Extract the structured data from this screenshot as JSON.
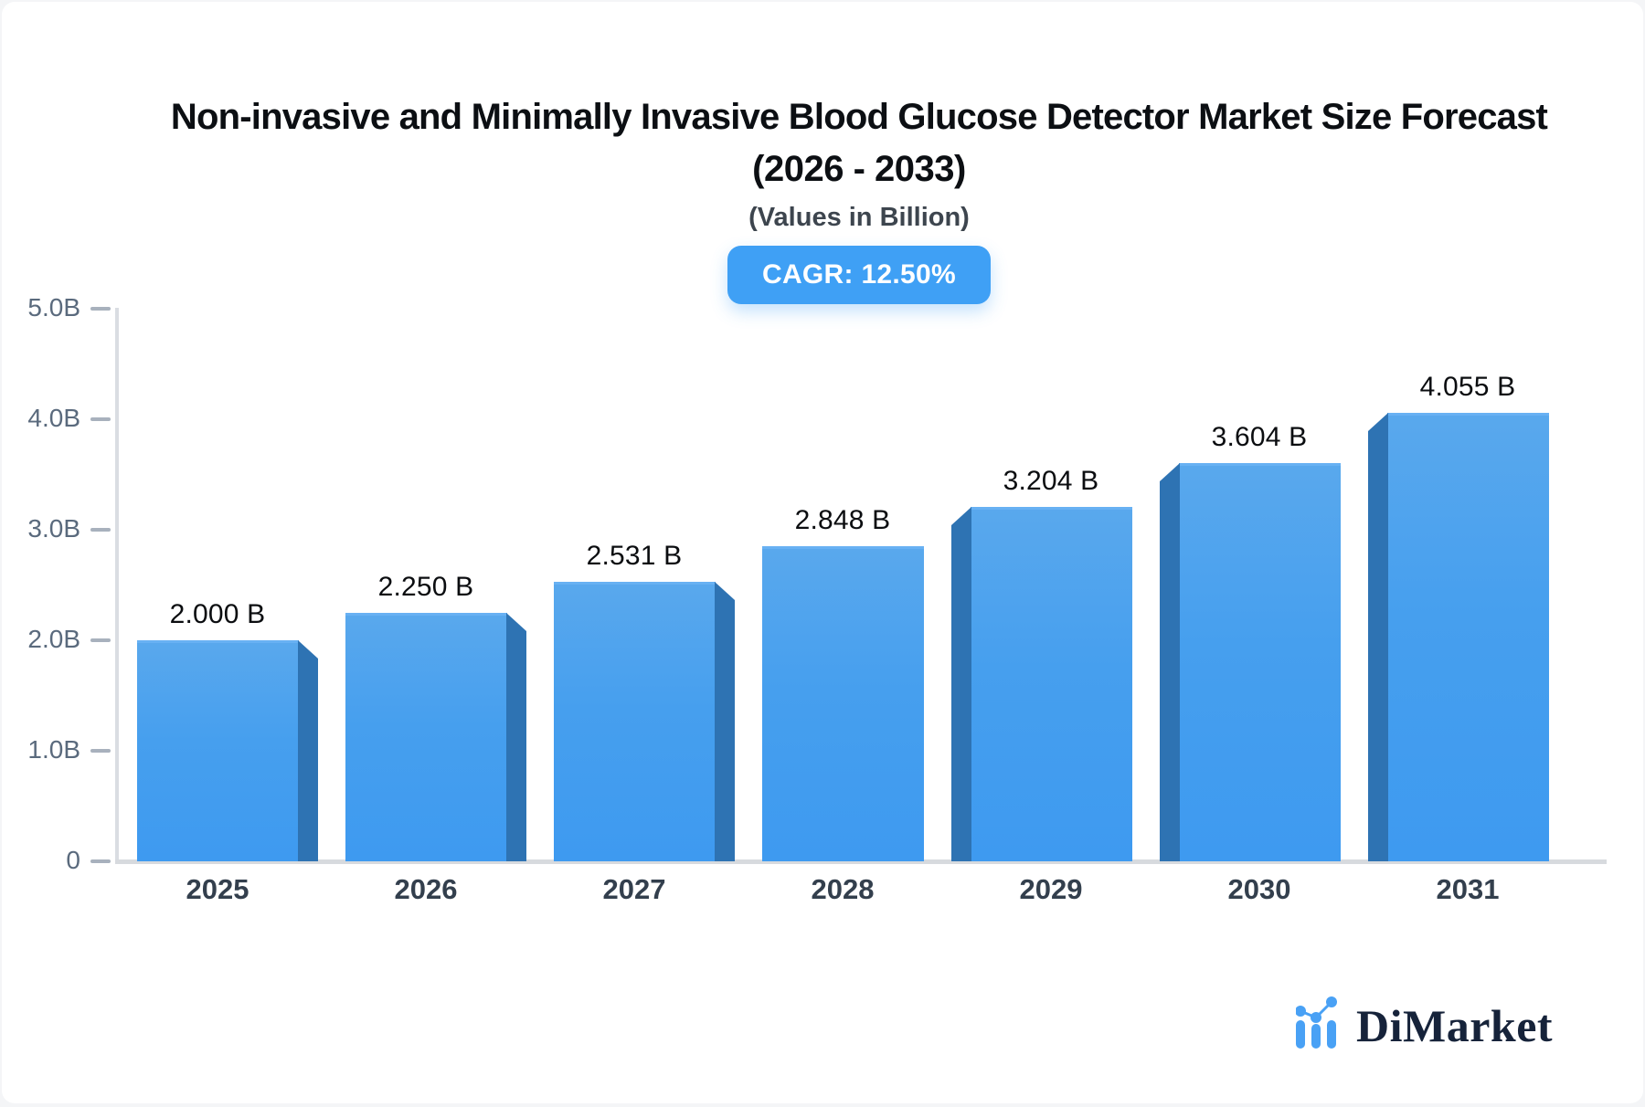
{
  "header": {
    "title_line1": "Non-invasive and Minimally Invasive Blood Glucose Detector Market Size Forecast",
    "title_line2": "(2026 - 2033)",
    "subtitle": "(Values in Billion)",
    "cagr_label": "CAGR: 12.50%"
  },
  "chart_data": {
    "type": "bar",
    "title": "Non-invasive and Minimally Invasive Blood Glucose Detector Market Size Forecast (2026 - 2033)",
    "subtitle": "(Values in Billion)",
    "cagr": "12.50%",
    "categories": [
      "2025",
      "2026",
      "2027",
      "2028",
      "2029",
      "2030",
      "2031"
    ],
    "values": [
      2.0,
      2.25,
      2.531,
      2.848,
      3.204,
      3.604,
      4.055
    ],
    "value_labels": [
      "2.000 B",
      "2.250 B",
      "2.531 B",
      "2.848 B",
      "3.204 B",
      "3.604 B",
      "4.055 B"
    ],
    "unit": "Billion",
    "ylim": [
      0,
      5
    ],
    "yticks": [
      0,
      1,
      2,
      3,
      4,
      5
    ],
    "ytick_labels": [
      "0",
      "1.0B",
      "2.0B",
      "3.0B",
      "4.0B",
      "5.0B"
    ],
    "grid": false,
    "legend_position": "none",
    "style": "3d-perspective-bars",
    "bar_color_top": "#59a8ed",
    "bar_color_bottom": "#3e9af0",
    "bar_side_color": "#2e73b3",
    "accent_color": "#3fa0f5"
  },
  "footer": {
    "brand": "DiMarket",
    "brand_color": "#16233a",
    "icon": "bar-chart-logo-icon",
    "icon_color": "#49a1f5"
  }
}
